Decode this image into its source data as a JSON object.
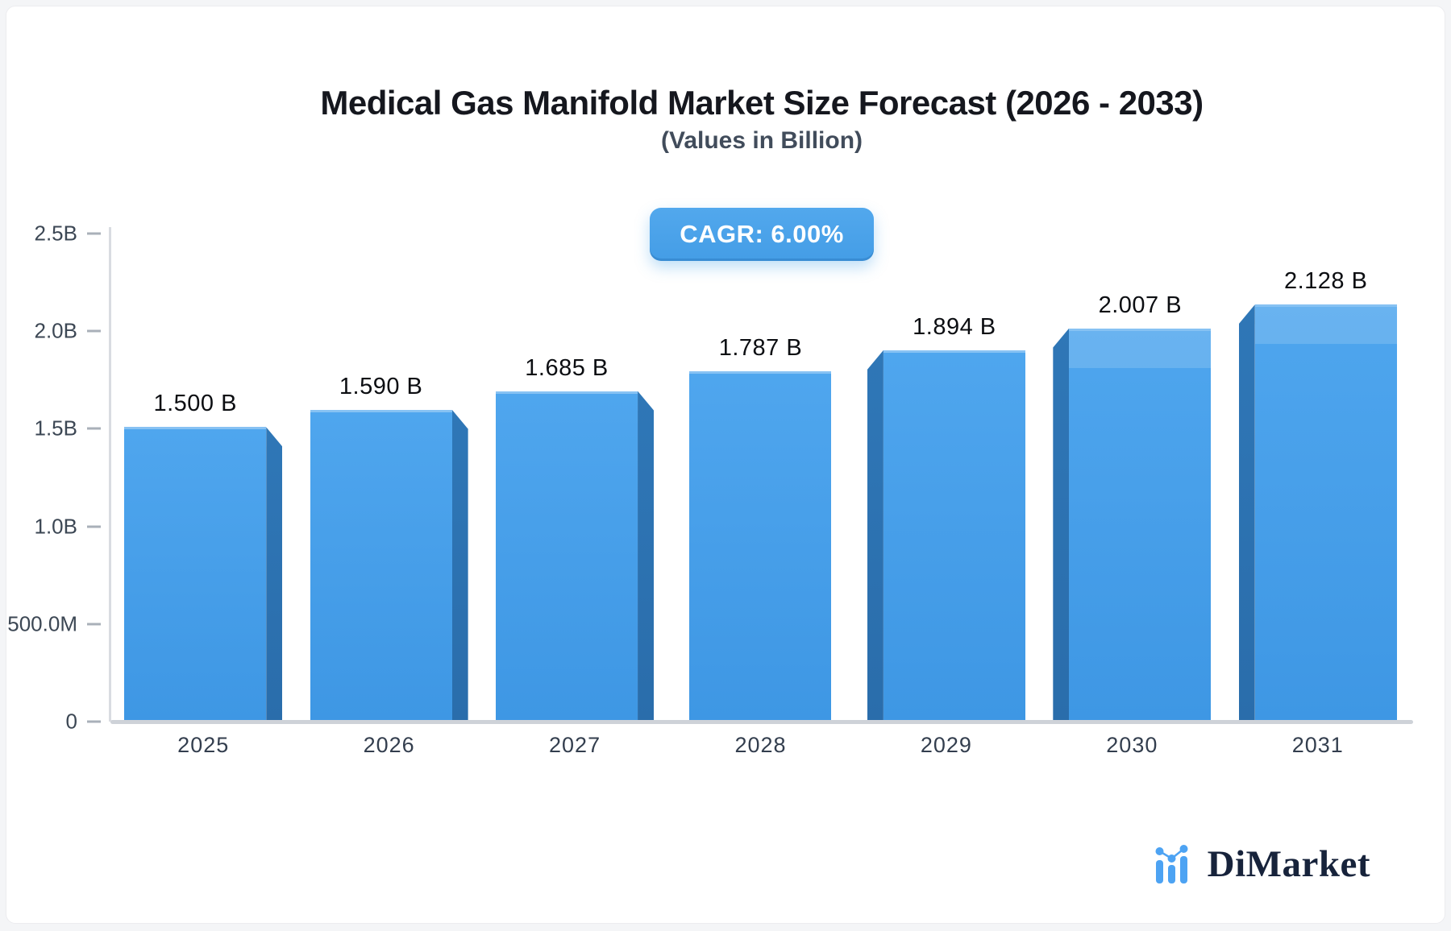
{
  "header": {
    "title": "Medical Gas Manifold Market Size Forecast (2026 - 2033)",
    "subtitle": "(Values in Billion)",
    "cagr_label": "CAGR: 6.00%"
  },
  "chart_data": {
    "type": "bar",
    "categories": [
      "2025",
      "2026",
      "2027",
      "2028",
      "2029",
      "2030",
      "2031"
    ],
    "values": [
      1.5,
      1.59,
      1.685,
      1.787,
      1.894,
      2.007,
      2.128
    ],
    "value_labels": [
      "1.500 B",
      "1.590 B",
      "1.685 B",
      "1.787 B",
      "1.894 B",
      "2.007 B",
      "2.128 B"
    ],
    "title": "Medical Gas Manifold Market Size Forecast (2026 - 2033)",
    "subtitle": "(Values in Billion)",
    "xlabel": "",
    "ylabel": "",
    "ylim": [
      0,
      2.5
    ],
    "yticks": [
      {
        "value": 2.5,
        "label": "2.5B"
      },
      {
        "value": 2.0,
        "label": "2.0B"
      },
      {
        "value": 1.5,
        "label": "1.5B"
      },
      {
        "value": 1.0,
        "label": "1.0B"
      },
      {
        "value": 0.5,
        "label": "500.0M"
      },
      {
        "value": 0,
        "label": "0"
      }
    ],
    "grid": false,
    "legend": "none",
    "annotation": "CAGR: 6.00%",
    "unit": "B"
  },
  "colors": {
    "bar_face_top": "#4FA6EE",
    "bar_face_bottom": "#3E97E4",
    "bar_side": "#2D73B4",
    "badge_bg": "#49A2E9",
    "badge_text": "#FFFFFF",
    "axis_line": "#D9DCE1",
    "baseline": "#CED2D8",
    "tick_dash": "#A9B0B9",
    "title_text": "#15171E",
    "logo_blue": "#4DA3F3",
    "logo_navy": "#17233B"
  },
  "logo": {
    "brand": "DiMarket",
    "icon": "bar-chart-logo-icon"
  }
}
